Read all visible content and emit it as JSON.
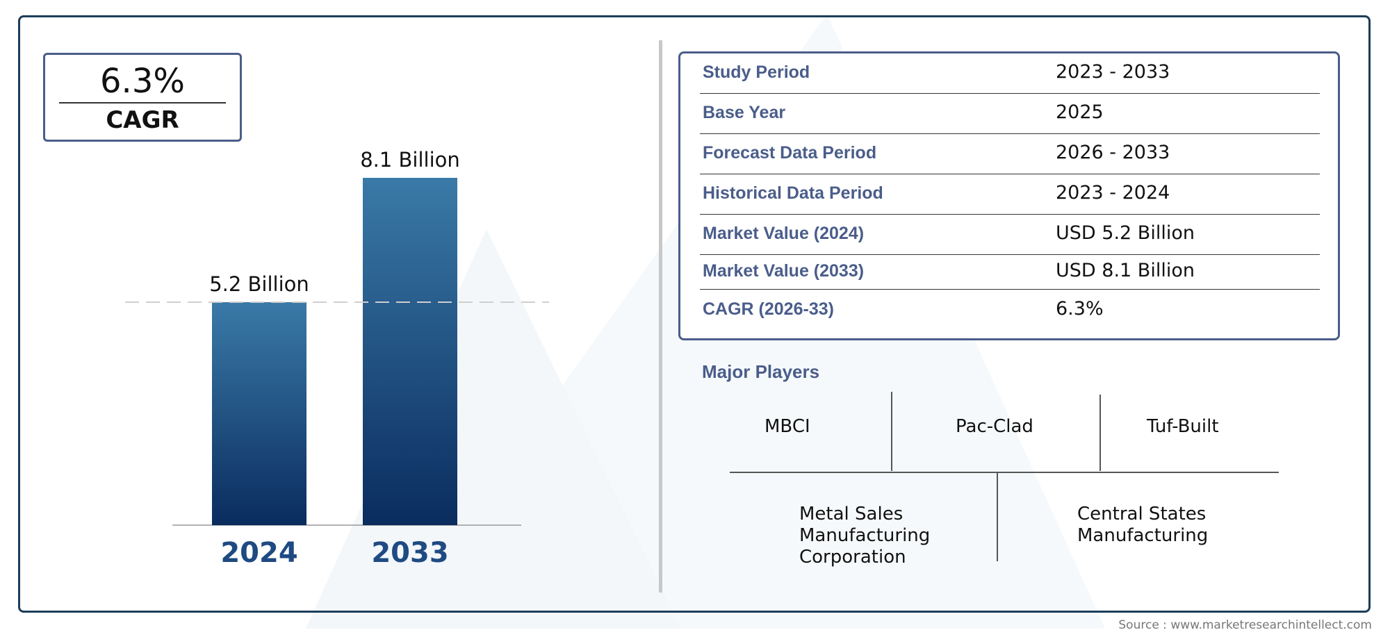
{
  "cagr_box": {
    "value": "6.3%",
    "label": "CAGR"
  },
  "chart_data": {
    "type": "bar",
    "categories": [
      "2024",
      "2033"
    ],
    "values": [
      5.2,
      8.1
    ],
    "data_labels": [
      "5.2 Billion",
      "8.1 Billion"
    ],
    "title": "",
    "xlabel": "",
    "ylabel": "",
    "ylim": [
      0,
      8.1
    ],
    "grid": false,
    "reference_line": "dashed line at 2024 value",
    "colors": {
      "top": "#3a7aa8",
      "bottom": "#0a2c5e"
    }
  },
  "summary_table": [
    {
      "label": "Study Period",
      "value": "2023 - 2033"
    },
    {
      "label": "Base Year",
      "value": "2025"
    },
    {
      "label": "Forecast Data Period",
      "value": "2026 - 2033"
    },
    {
      "label": "Historical Data Period",
      "value": "2023 - 2024"
    },
    {
      "label": "Market Value (2024)",
      "value": "USD 5.2 Billion"
    },
    {
      "label": "Market Value (2033)",
      "value": "USD 8.1 Billion"
    },
    {
      "label": "CAGR (2026-33)",
      "value": "6.3%"
    }
  ],
  "major_players": {
    "title": "Major Players",
    "row1": [
      "MBCI",
      "Pac-Clad",
      "Tuf-Built"
    ],
    "row2": [
      [
        "Metal Sales",
        "Manufacturing",
        "Corporation"
      ],
      [
        "Central States",
        "Manufacturing"
      ]
    ]
  },
  "source": "Source : www.marketresearchintellect.com",
  "colors": {
    "accent": "#4a5d8a",
    "frame": "#1c3d5a"
  }
}
